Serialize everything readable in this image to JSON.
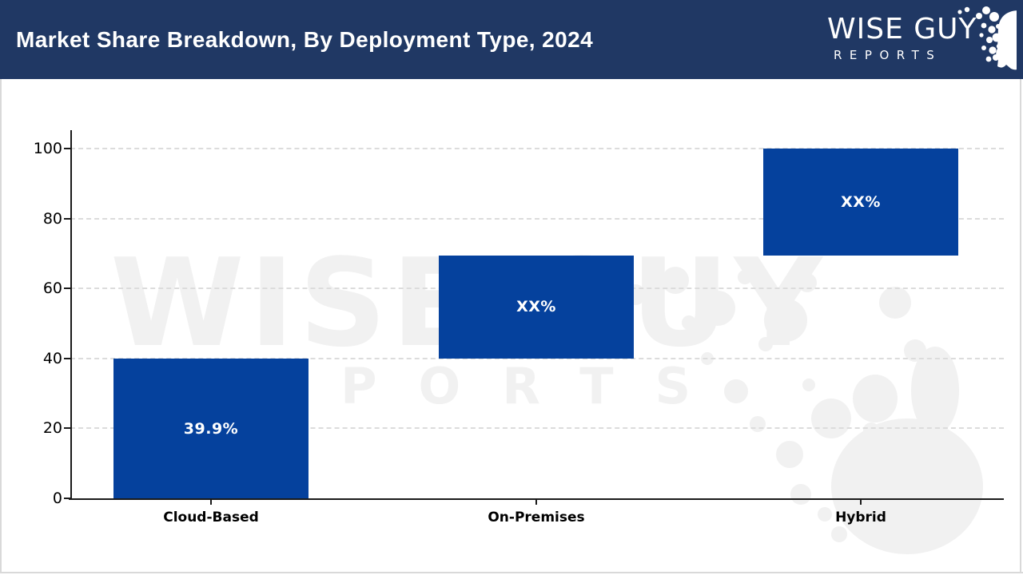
{
  "header": {
    "title": "Market Share Breakdown, By Deployment Type, 2024",
    "logo": {
      "line1": "WISE GUY",
      "line2": "REPORTS"
    }
  },
  "watermark": {
    "line1": "WISE GUY",
    "line2": "REPORTS"
  },
  "colors": {
    "header_bg": "#203864",
    "bar": "#05419d",
    "bar_label": "#ffffff",
    "grid": "#dcdcdc",
    "axis": "#1a1a1a",
    "watermark": "#f1f1f1",
    "border": "#d9d9d9"
  },
  "chart_data": {
    "type": "bar",
    "subtype": "stacked-percentage-waterfall",
    "title": "Market Share Breakdown, By Deployment Type, 2024",
    "categories": [
      "Cloud-Based",
      "On-Premises",
      "Hybrid"
    ],
    "segments": [
      {
        "category": "Cloud-Based",
        "base": 0,
        "top": 39.9,
        "label": "39.9%"
      },
      {
        "category": "On-Premises",
        "base": 39.9,
        "top": 69.5,
        "label": "XX%"
      },
      {
        "category": "Hybrid",
        "base": 69.5,
        "top": 100,
        "label": "XX%"
      }
    ],
    "yticks": [
      0,
      20,
      40,
      60,
      80,
      100
    ],
    "ylim": [
      0,
      105
    ],
    "grid": "dashed-horizontal",
    "legend": "none"
  }
}
